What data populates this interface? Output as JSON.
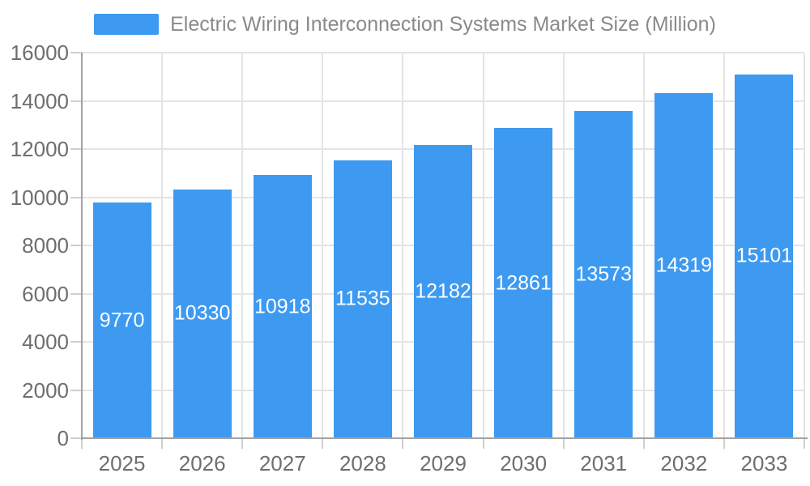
{
  "legend": {
    "label": "Electric Wiring Interconnection Systems Market Size (Million)"
  },
  "chart_data": {
    "type": "bar",
    "title": "Electric Wiring Interconnection Systems Market Size (Million)",
    "categories": [
      "2025",
      "2026",
      "2027",
      "2028",
      "2029",
      "2030",
      "2031",
      "2032",
      "2033"
    ],
    "values": [
      9770,
      10330,
      10918,
      11535,
      12182,
      12861,
      13573,
      14319,
      15101
    ],
    "value_labels": [
      "9770",
      "10330",
      "10918",
      "11535",
      "12182",
      "12861",
      "13573",
      "14319",
      "15101"
    ],
    "xlabel": "",
    "ylabel": "",
    "ylim": [
      0,
      16000
    ],
    "ytick_interval": 2000,
    "yticks": [
      0,
      2000,
      4000,
      6000,
      8000,
      10000,
      12000,
      14000,
      16000
    ],
    "ytick_labels": [
      "0",
      "2000",
      "4000",
      "6000",
      "8000",
      "10000",
      "12000",
      "14000",
      "16000"
    ],
    "grid": true,
    "legend_position": "top",
    "bar_label_position": "inside-middle"
  },
  "colors": {
    "bar": "#3D9AF0",
    "bar_label": "#FFFFFF",
    "grid": "#E4E4E4",
    "axis": "#A3A3A3",
    "tick": "#CFCFCF",
    "axis_label": "#6E6E6E",
    "legend_text": "#8A8A8A",
    "background": "#FFFFFF"
  }
}
